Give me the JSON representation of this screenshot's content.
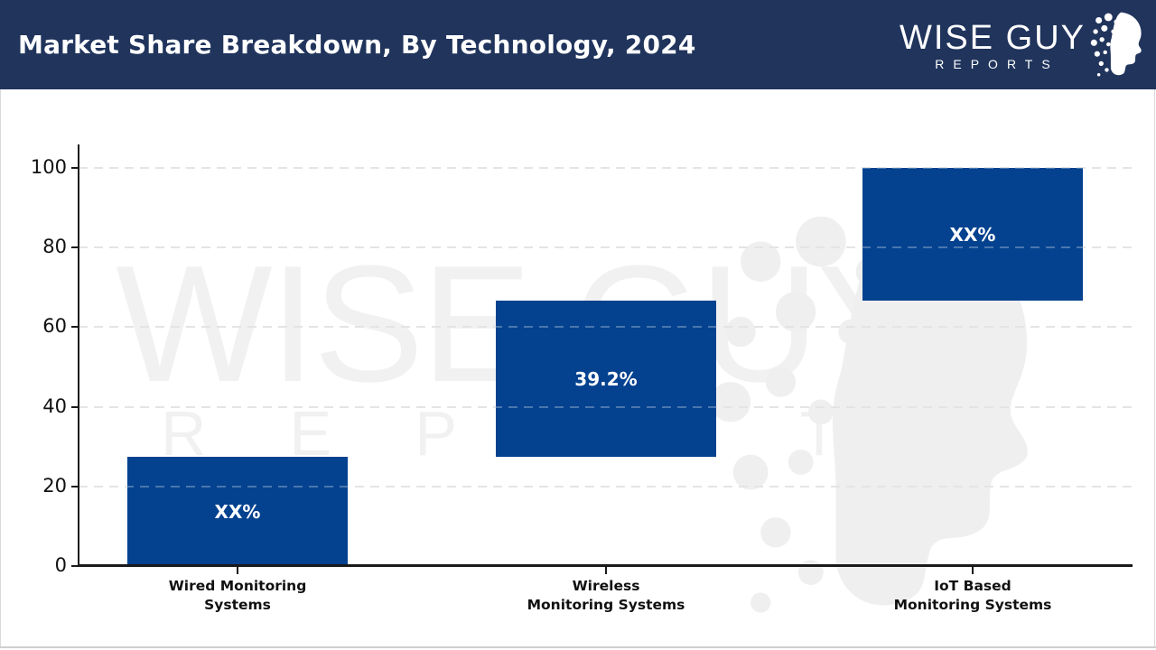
{
  "header": {
    "title": "Market Share Breakdown, By Technology, 2024",
    "logo": {
      "line1": "WISE GUY",
      "line2": "REPORTS"
    }
  },
  "watermark": {
    "line1": "WISE GUY",
    "line2": "REPORTS"
  },
  "colors": {
    "header_bg": "#20345C",
    "bar_fill": "#04428F",
    "grid_line": "#D9D9D9",
    "axis_text": "#111111",
    "value_text": "#FFFFFF",
    "watermark": "#F1F1F1"
  },
  "chart_data": {
    "type": "bar",
    "subtype": "waterfall-floating-bars",
    "title": "Market Share Breakdown, By Technology, 2024",
    "categories": [
      "Wired Monitoring Systems",
      "Wireless Monitoring Systems",
      "IoT Based Monitoring Systems"
    ],
    "category_label_lines": [
      [
        "Wired Monitoring",
        "Systems"
      ],
      [
        "Wireless",
        "Monitoring Systems"
      ],
      [
        "IoT Based",
        "Monitoring Systems"
      ]
    ],
    "segments": [
      {
        "category": "Wired Monitoring Systems",
        "start": 0,
        "end": 27.4,
        "value_label": "XX%"
      },
      {
        "category": "Wireless Monitoring Systems",
        "start": 27.4,
        "end": 66.6,
        "value_label": "39.2%"
      },
      {
        "category": "IoT Based Monitoring Systems",
        "start": 66.6,
        "end": 100,
        "value_label": "XX%"
      }
    ],
    "xlabel": "",
    "ylabel": "",
    "ylim": [
      0,
      100
    ],
    "yticks": [
      0,
      20,
      40,
      60,
      80,
      100
    ],
    "grid": "horizontal dashed, drawn over bars",
    "legend": "none"
  }
}
